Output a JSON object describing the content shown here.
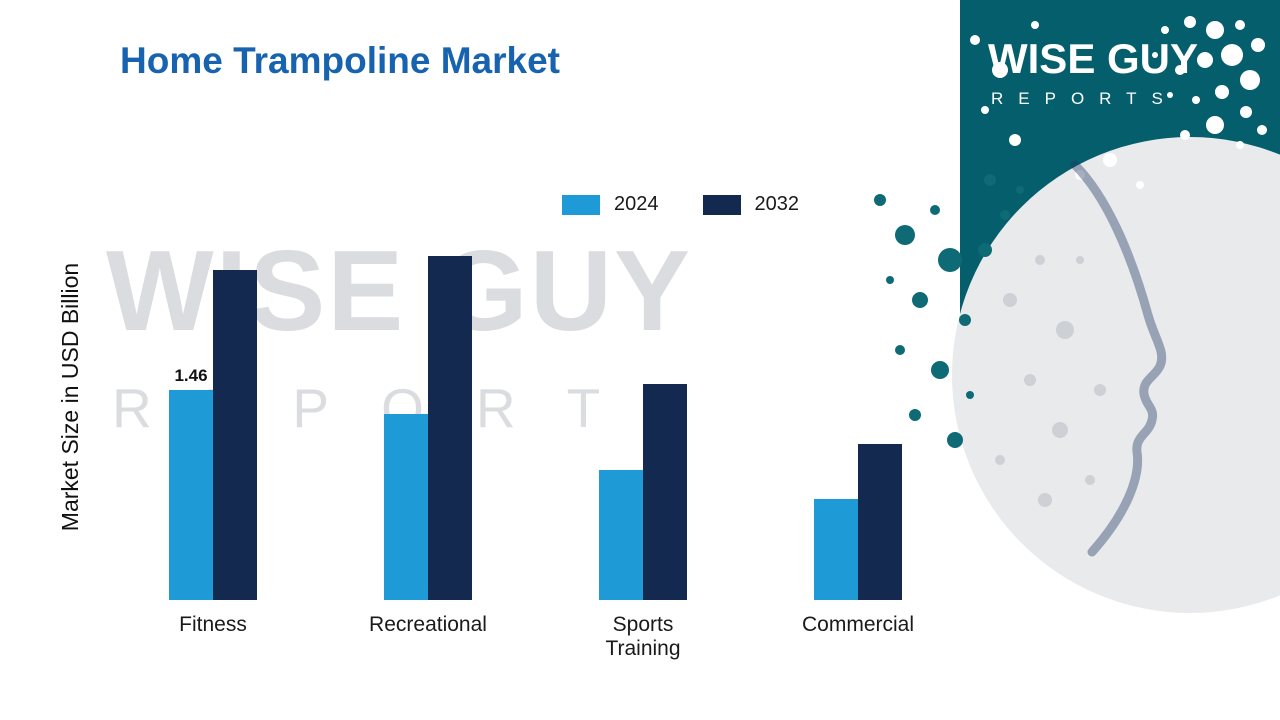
{
  "brand": {
    "logo_line1": "WISE GUY",
    "logo_line2": "REPORTS",
    "panel_color": "#055E6B",
    "title_color": "#1763AF"
  },
  "watermark": {
    "line1": "WISE GUY",
    "line2": "REPORTS"
  },
  "chart_data": {
    "type": "bar",
    "title": "Home Trampoline Market",
    "ylabel": "Market Size in USD Billion",
    "categories": [
      "Fitness",
      "Recreational",
      "Sports Training",
      "Commercial"
    ],
    "series": [
      {
        "name": "2024",
        "color": "#1E9AD6",
        "values": [
          1.46,
          1.29,
          0.9,
          0.7
        ]
      },
      {
        "name": "2032",
        "color": "#132950",
        "values": [
          2.29,
          2.39,
          1.5,
          1.08
        ]
      }
    ],
    "annotations": [
      {
        "category_index": 0,
        "series_index": 0,
        "text": "1.46"
      }
    ],
    "ylim": [
      0,
      2.6
    ],
    "grid": false,
    "legend_position": "top"
  }
}
